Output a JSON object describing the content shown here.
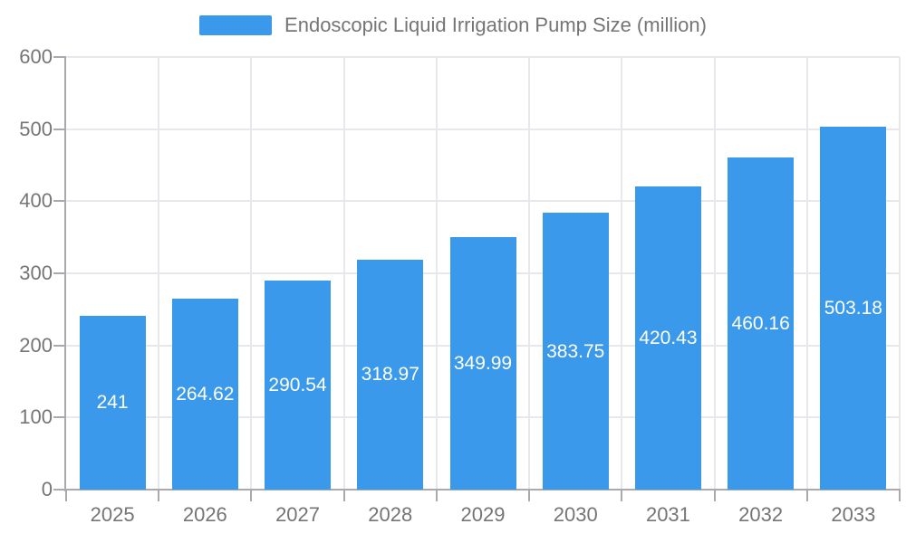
{
  "chart_data": {
    "type": "bar",
    "title": "Endoscopic Liquid Irrigation Pump Size (million)",
    "series": [
      {
        "name": "Endoscopic Liquid Irrigation Pump Size (million)",
        "values": [
          241,
          264.62,
          290.54,
          318.97,
          349.99,
          383.75,
          420.43,
          460.16,
          503.18
        ]
      }
    ],
    "categories": [
      "2025",
      "2026",
      "2027",
      "2028",
      "2029",
      "2030",
      "2031",
      "2032",
      "2033"
    ],
    "xlabel": "",
    "ylabel": "",
    "ylim": [
      0,
      600
    ],
    "yticks": [
      0,
      100,
      200,
      300,
      400,
      500,
      600
    ],
    "grid": {
      "horizontal": true,
      "vertical": true
    },
    "legend_position": "top-center",
    "value_labels": {
      "position": "inside-center",
      "color": "#ffffff"
    },
    "colors": {
      "bar": "#3B99EC",
      "axis_line": "#A9A9AF",
      "grid_line": "#E7E7EC",
      "tick_label": "#757575",
      "legend_text": "#757575",
      "background": "#FFFFFF"
    }
  }
}
